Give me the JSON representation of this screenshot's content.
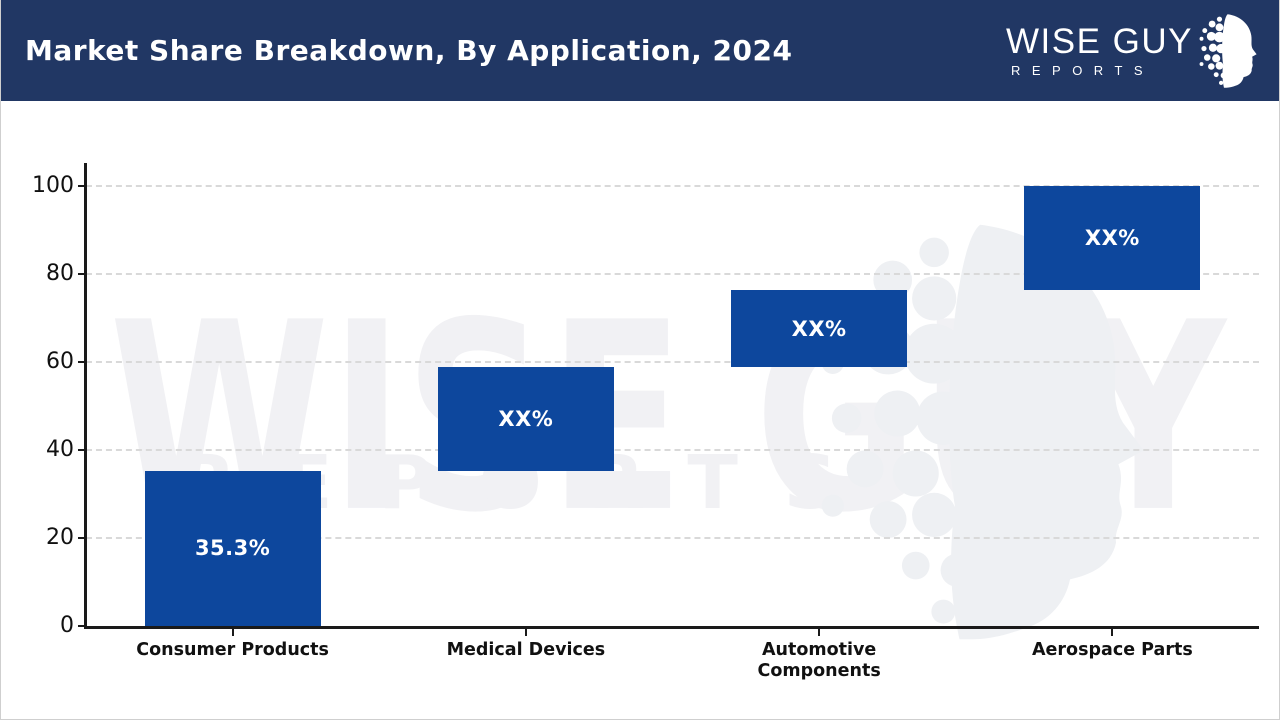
{
  "header": {
    "title": "Market Share Breakdown, By Application, 2024",
    "background_color": "#213764",
    "logo": {
      "line1": "WISE GUY",
      "line2": "REPORTS"
    }
  },
  "watermark": {
    "line1": "WISE GUY",
    "line2": "REPORTS"
  },
  "chart_data": {
    "type": "bar",
    "subtype": "waterfall",
    "title": "Market Share Breakdown, By Application, 2024",
    "categories": [
      "Consumer Products",
      "Medical Devices",
      "Automotive\nComponents",
      "Aerospace Parts"
    ],
    "segments": [
      {
        "category": "Consumer Products",
        "start": 0,
        "end": 35.3,
        "label": "35.3%"
      },
      {
        "category": "Medical Devices",
        "start": 35.3,
        "end": 58.8,
        "label": "XX%"
      },
      {
        "category": "Automotive Components",
        "start": 58.8,
        "end": 76.4,
        "label": "XX%"
      },
      {
        "category": "Aerospace Parts",
        "start": 76.4,
        "end": 100,
        "label": "XX%"
      }
    ],
    "ylim": [
      0,
      100
    ],
    "yticks": [
      0,
      20,
      40,
      60,
      80,
      100
    ],
    "xlabel": "",
    "ylabel": "",
    "grid": "horizontal-dashed",
    "legend": "none",
    "bar_color": "#0d479d",
    "bar_label_color": "#ffffff",
    "axis_color": "#1a1a1a",
    "gridline_color": "#d9d9d9"
  }
}
